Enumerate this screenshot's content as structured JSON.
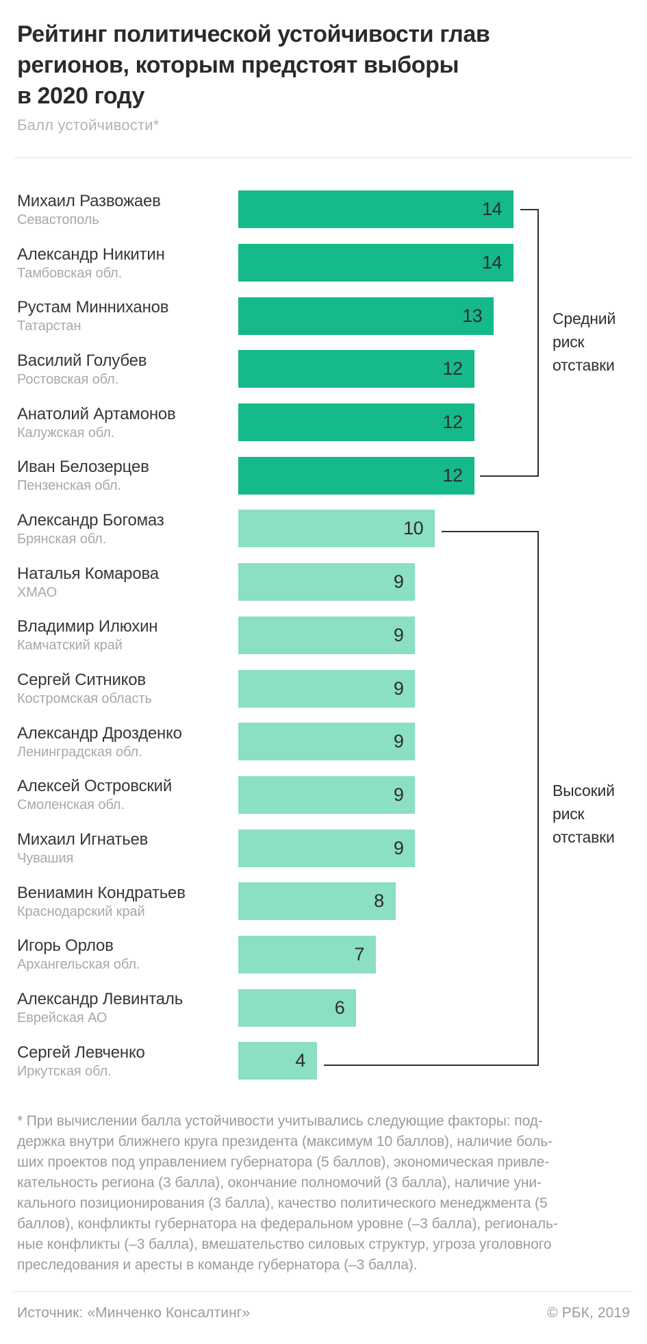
{
  "header": {
    "title_lines": [
      "Рейтинг политической устойчивости глав",
      "регионов, которым предстоят выборы",
      "в 2020 году"
    ],
    "subtitle": "Балл устойчивости*"
  },
  "chart_data": {
    "type": "bar",
    "orientation": "horizontal",
    "title": "Рейтинг политической устойчивости глав регионов, которым предстоят выборы в 2020 году",
    "value_axis_label": "Балл устойчивости*",
    "value_range": [
      0,
      14
    ],
    "grid": false,
    "rows": [
      {
        "name": "Михаил Развожаев",
        "region": "Севастополь",
        "value": 14,
        "risk": "medium"
      },
      {
        "name": "Александр Никитин",
        "region": "Тамбовская обл.",
        "value": 14,
        "risk": "medium"
      },
      {
        "name": "Рустам Минниханов",
        "region": "Татарстан",
        "value": 13,
        "risk": "medium"
      },
      {
        "name": "Василий Голубев",
        "region": "Ростовская обл.",
        "value": 12,
        "risk": "medium"
      },
      {
        "name": "Анатолий Артамонов",
        "region": "Калужская обл.",
        "value": 12,
        "risk": "medium"
      },
      {
        "name": "Иван Белозерцев",
        "region": "Пензенская обл.",
        "value": 12,
        "risk": "medium"
      },
      {
        "name": "Александр Богомаз",
        "region": "Брянская обл.",
        "value": 10,
        "risk": "high"
      },
      {
        "name": "Наталья Комарова",
        "region": "ХМАО",
        "value": 9,
        "risk": "high"
      },
      {
        "name": "Владимир Илюхин",
        "region": "Камчатский край",
        "value": 9,
        "risk": "high"
      },
      {
        "name": "Сергей Ситников",
        "region": "Костромская область",
        "value": 9,
        "risk": "high"
      },
      {
        "name": "Александр Дрозденко",
        "region": "Ленинградская обл.",
        "value": 9,
        "risk": "high"
      },
      {
        "name": "Алексей Островский",
        "region": "Смоленская обл.",
        "value": 9,
        "risk": "high"
      },
      {
        "name": "Михаил Игнатьев",
        "region": "Чувашия",
        "value": 9,
        "risk": "high"
      },
      {
        "name": "Вениамин Кондратьев",
        "region": "Краснодарский край",
        "value": 8,
        "risk": "high"
      },
      {
        "name": "Игорь Орлов",
        "region": "Архангельская обл.",
        "value": 7,
        "risk": "high"
      },
      {
        "name": "Александр Левинталь",
        "region": "Еврейская АО",
        "value": 6,
        "risk": "high"
      },
      {
        "name": "Сергей Левченко",
        "region": "Иркутская обл.",
        "value": 4,
        "risk": "high"
      }
    ],
    "group_labels": {
      "medium": "Средний риск отставки",
      "high": "Высокий риск отставки"
    },
    "legend_position": "right-brackets"
  },
  "colors": {
    "bar_medium_risk": "#16b98a",
    "bar_high_risk": "#8adfc4",
    "bar_value_text": "#2d2d2d",
    "bracket_line": "#2f2f2f"
  },
  "footnote": {
    "lines": [
      "* При вычислении балла устойчивости учитывались следующие факторы: под-",
      "держка внутри ближнего круга президента (максимум 10 баллов), наличие боль-",
      "ших проектов под управлением губернатора (5 баллов), экономическая привле-",
      "кательность региона (3 балла), окончание полномочий (3 балла), наличие уни-",
      "кального позиционирования (3 балла), качество политического менеджмента (5",
      "баллов), конфликты губернатора на федеральном уровне (–3 балла), региональ-",
      "ные конфликты (–3 балла), вмешательство силовых структур, угроза уголовного",
      "преследования и аресты в команде губернатора (–3 балла)."
    ]
  },
  "footer": {
    "source": "Источник: «Минченко Консалтинг»",
    "copyright": "© РБК, 2019"
  }
}
